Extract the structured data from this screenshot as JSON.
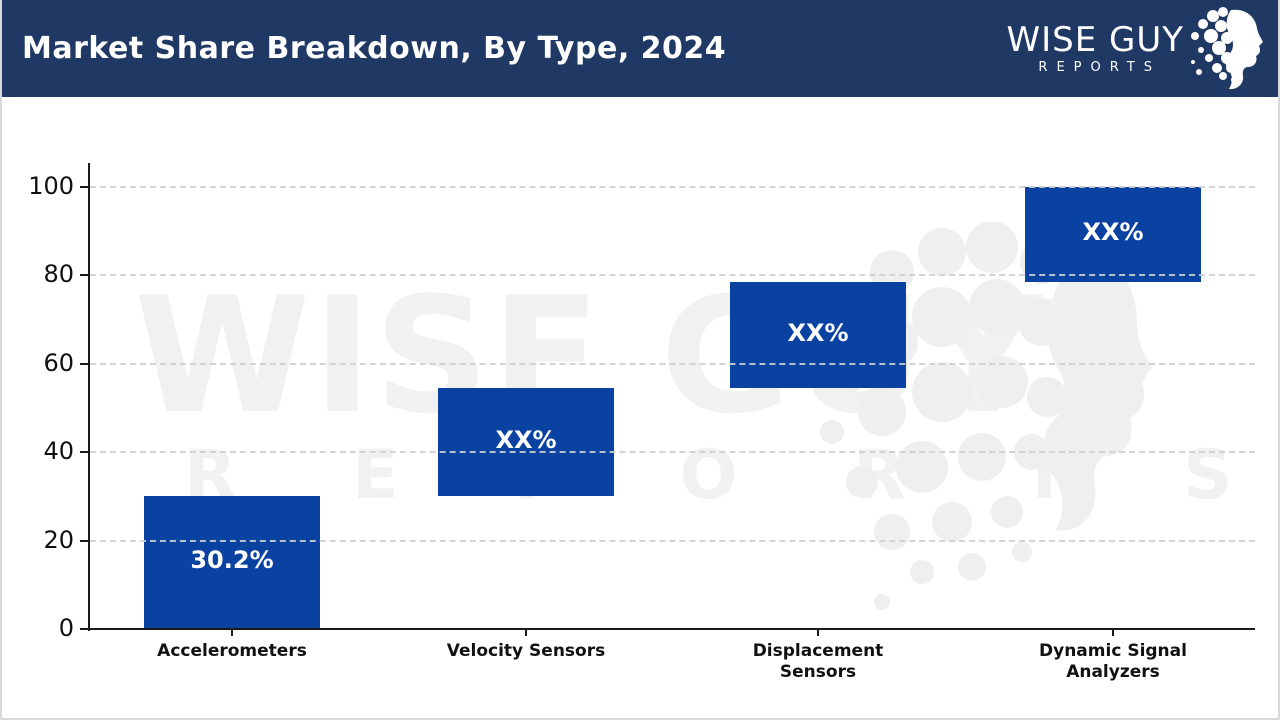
{
  "header": {
    "title": "Market Share Breakdown, By Type, 2024",
    "logo": {
      "primary": "WISE GUY",
      "secondary": "REPORTS"
    }
  },
  "watermark": {
    "primary": "WISE GUY",
    "secondary": "R E P O R T S"
  },
  "colors": {
    "header_bg": "#203864",
    "bar": "#0a42a1",
    "bar_label": "#ffffff",
    "axis": "#1a1a1a",
    "grid": "#cfcfcf",
    "watermark": "#f0f0f0",
    "page_border": "#d9d9d9"
  },
  "chart_data": {
    "type": "bar",
    "subtype": "waterfall",
    "title": "Market Share Breakdown, By Type, 2024",
    "xlabel": "",
    "ylabel": "",
    "ylim": [
      0,
      100
    ],
    "y_ticks": [
      0,
      20,
      40,
      60,
      80,
      100
    ],
    "grid": "horizontal-dashed",
    "legend": "none",
    "categories": [
      "Accelerometers",
      "Velocity Sensors",
      "Displacement Sensors",
      "Dynamic Signal Analyzers"
    ],
    "category_label_lines": [
      [
        "Accelerometers"
      ],
      [
        "Velocity Sensors"
      ],
      [
        "Displacement",
        "Sensors"
      ],
      [
        "Dynamic Signal",
        "Analyzers"
      ]
    ],
    "segments": [
      {
        "category": "Accelerometers",
        "start": 0,
        "end": 30.2,
        "label": "30.2%"
      },
      {
        "category": "Velocity Sensors",
        "start": 30.2,
        "end": 54.6,
        "label": "XX%"
      },
      {
        "category": "Displacement Sensors",
        "start": 54.6,
        "end": 78.6,
        "label": "XX%"
      },
      {
        "category": "Dynamic Signal Analyzers",
        "start": 78.6,
        "end": 100,
        "label": "XX%"
      }
    ]
  }
}
